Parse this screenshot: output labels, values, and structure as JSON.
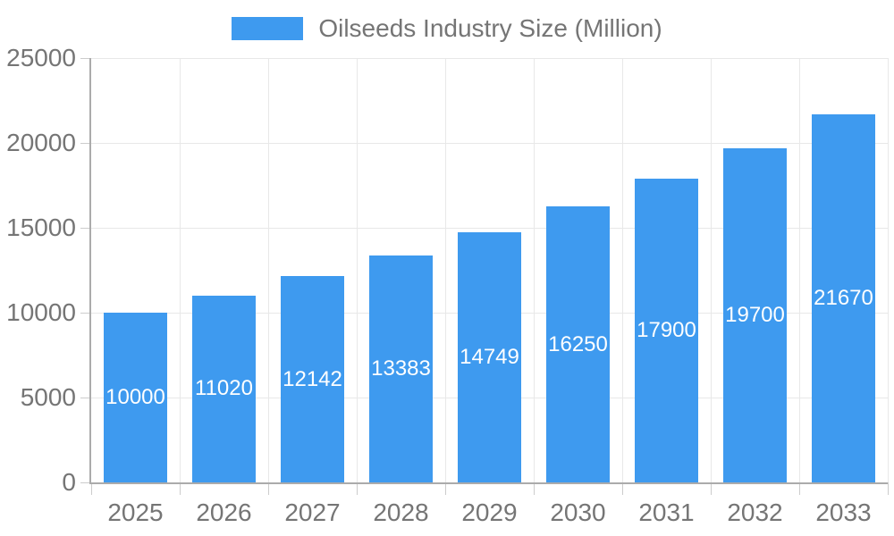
{
  "chart_data": {
    "type": "bar",
    "title": "Oilseeds Industry Size (Million)",
    "categories": [
      "2025",
      "2026",
      "2027",
      "2028",
      "2029",
      "2030",
      "2031",
      "2032",
      "2033"
    ],
    "series": [
      {
        "name": "Oilseeds Industry Size (Million)",
        "values": [
          10000,
          11020,
          12142,
          13383,
          14749,
          16250,
          17900,
          19700,
          21670
        ]
      }
    ],
    "xlabel": "",
    "ylabel": "",
    "ylim": [
      0,
      25000
    ],
    "yticks": [
      0,
      5000,
      10000,
      15000,
      20000,
      25000
    ],
    "grid": true,
    "legend_position": "top",
    "bar_color": "#3E9AEF",
    "value_label_color": "#FFFFFF",
    "axis_text_color": "#757575",
    "grid_color": "#E8E8E8",
    "axis_line_color": "#ABABAB",
    "tick_mark_color": "#CCCCCC"
  }
}
